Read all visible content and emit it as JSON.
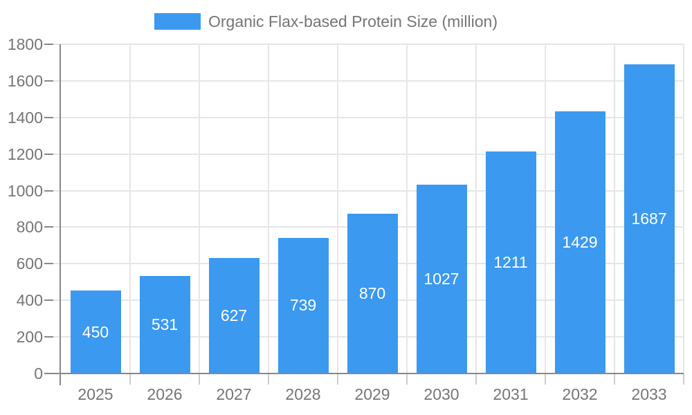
{
  "legend": {
    "label": "Organic Flax-based Protein Size (million)"
  },
  "chart_data": {
    "type": "bar",
    "title": "Organic Flax-based Protein Size (million)",
    "categories": [
      "2025",
      "2026",
      "2027",
      "2028",
      "2029",
      "2030",
      "2031",
      "2032",
      "2033"
    ],
    "values": [
      450,
      531,
      627,
      739,
      870,
      1027,
      1211,
      1429,
      1687
    ],
    "value_labels": [
      "450",
      "531",
      "627",
      "739",
      "870",
      "1027",
      "1211",
      "1429",
      "1687"
    ],
    "xlabel": "",
    "ylabel": "",
    "ylim": [
      0,
      1800
    ],
    "yticks": [
      0,
      200,
      400,
      600,
      800,
      1000,
      1200,
      1400,
      1600,
      1800
    ],
    "grid": true,
    "legend_position": "top",
    "colors": {
      "bar": "#3B99F0",
      "bar_value_label": "#FFFFFF",
      "axis_label": "#757575",
      "legend_text": "#757575",
      "gridline": "#E6E6E6",
      "axis_line": "#878787",
      "boundary_tick": "#CCCCCC"
    }
  }
}
